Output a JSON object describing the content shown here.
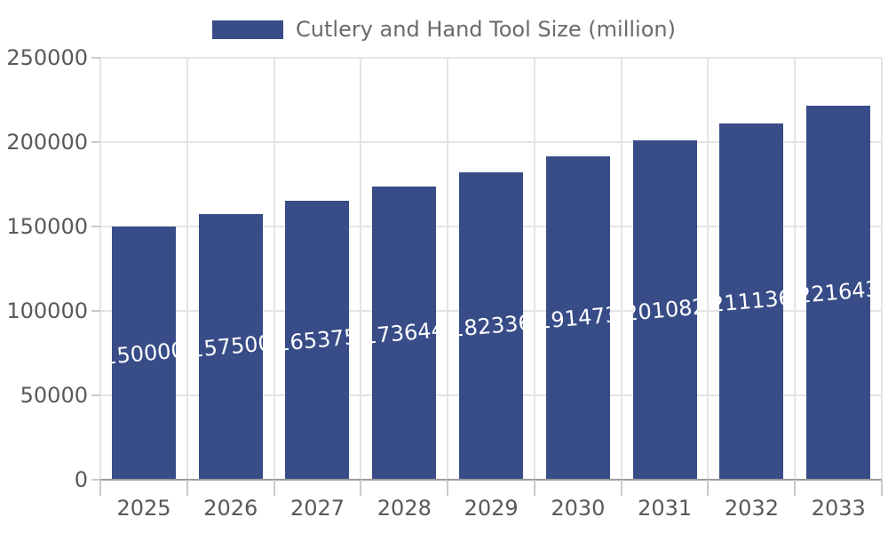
{
  "legend": {
    "label": "Cutlery and Hand Tool Size (million)"
  },
  "colors": {
    "bar": "#384C87",
    "bar_label_text": "#FFFFFF",
    "axis_text": "#595959",
    "legend_text": "#6A6A6A",
    "gridline": "#E4E4E4",
    "tick": "#C9C9C9",
    "bottom_spine": "#9C9C9C"
  },
  "chart_data": {
    "type": "bar",
    "title": "Cutlery and Hand Tool Size (million)",
    "categories": [
      "2025",
      "2026",
      "2027",
      "2028",
      "2029",
      "2030",
      "2031",
      "2032",
      "2033"
    ],
    "values": [
      150000,
      157500,
      165375,
      173644,
      182336,
      191473,
      201082,
      211136,
      221643
    ],
    "bar_labels": [
      "150000",
      "157500",
      "165375",
      "173644",
      "182336",
      "191473",
      "201082",
      "211136",
      "221643"
    ],
    "xlabel": "",
    "ylabel": "",
    "ylim": [
      0,
      250000
    ],
    "ytick_labels": [
      "0",
      "50000",
      "100000",
      "150000",
      "200000",
      "250000"
    ],
    "yticks": [
      0,
      50000,
      100000,
      150000,
      200000,
      250000
    ],
    "grid": true,
    "legend_position": "top-center",
    "bar_label_rotation_deg": -5
  }
}
